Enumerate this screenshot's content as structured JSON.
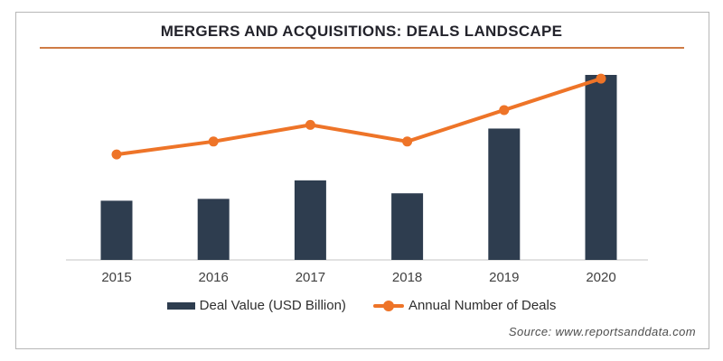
{
  "header": {
    "title": "MERGERS AND ACQUISITIONS: DEALS LANDSCAPE"
  },
  "source_note": "Source: www.reportsanddata.com",
  "colors": {
    "bar": "#2e3d4f",
    "line": "#ee7428",
    "title_underline": "#cf7c45",
    "axis_line": "#d9d9d9",
    "frame_border": "#b7b7b7"
  },
  "legend": {
    "items": [
      {
        "label": "Deal Value (USD Billion)",
        "swatch": "bar-swatch"
      },
      {
        "label": "Annual Number of Deals",
        "swatch": "line-swatch"
      }
    ]
  },
  "chart_data": {
    "type": "bar",
    "subtype": "bar-line-combo",
    "title": "MERGERS AND ACQUISITIONS: DEALS LANDSCAPE",
    "categories": [
      "2015",
      "2016",
      "2017",
      "2018",
      "2019",
      "2020"
    ],
    "series": [
      {
        "name": "Deal Value (USD Billion)",
        "type": "bar",
        "values": [
          32,
          33,
          43,
          36,
          71,
          100
        ]
      },
      {
        "name": "Annual Number of Deals",
        "type": "line",
        "values": [
          57,
          64,
          73,
          64,
          81,
          98
        ]
      }
    ],
    "xlabel": "",
    "ylabel": "",
    "ylim": [
      0,
      105
    ],
    "value_axis_visible": false,
    "gridlines": false,
    "legend_position": "bottom",
    "values_note": "No value axis shown in figure; values estimated on a 0-100 relative scale"
  }
}
